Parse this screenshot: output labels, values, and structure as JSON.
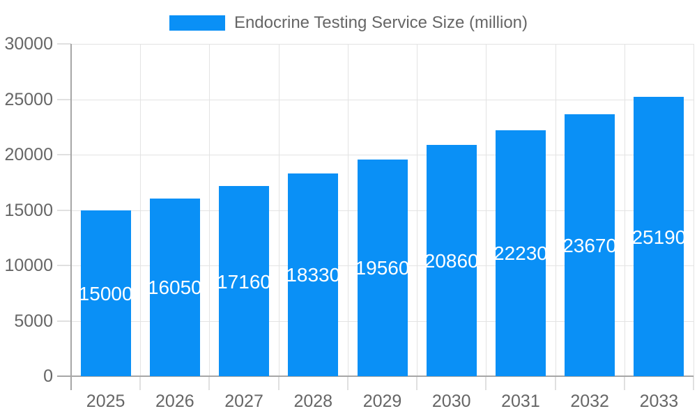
{
  "legend": {
    "items": [
      {
        "label": "Endocrine Testing Service Size (million)",
        "color": "#0A90F6"
      }
    ]
  },
  "chart_data": {
    "type": "bar",
    "title": "",
    "categories": [
      "2025",
      "2026",
      "2027",
      "2028",
      "2029",
      "2030",
      "2031",
      "2032",
      "2033"
    ],
    "series": [
      {
        "name": "Endocrine Testing Service Size (million)",
        "values": [
          15000,
          16050,
          17160,
          18330,
          19560,
          20860,
          22230,
          23670,
          25190
        ]
      }
    ],
    "value_labels": [
      "15000",
      "16050",
      "17160",
      "18330",
      "19560",
      "20860",
      "22230",
      "23670",
      "25190"
    ],
    "ytick_labels": [
      "0",
      "5000",
      "10000",
      "15000",
      "20000",
      "25000",
      "30000"
    ],
    "yticks": [
      0,
      5000,
      10000,
      15000,
      20000,
      25000,
      30000
    ],
    "ylim": [
      0,
      30000
    ],
    "xlabel": "",
    "ylabel": "",
    "grid": true,
    "legend_position": "top-center",
    "colors": {
      "bar": "#0A90F6",
      "value_label": "#FFFFFF",
      "tick_label": "#666666",
      "legend_text": "#666666",
      "gridline": "#E3E3E3",
      "tick_mark": "#E0E0E0",
      "axis_line": "#A6A6A6"
    }
  }
}
